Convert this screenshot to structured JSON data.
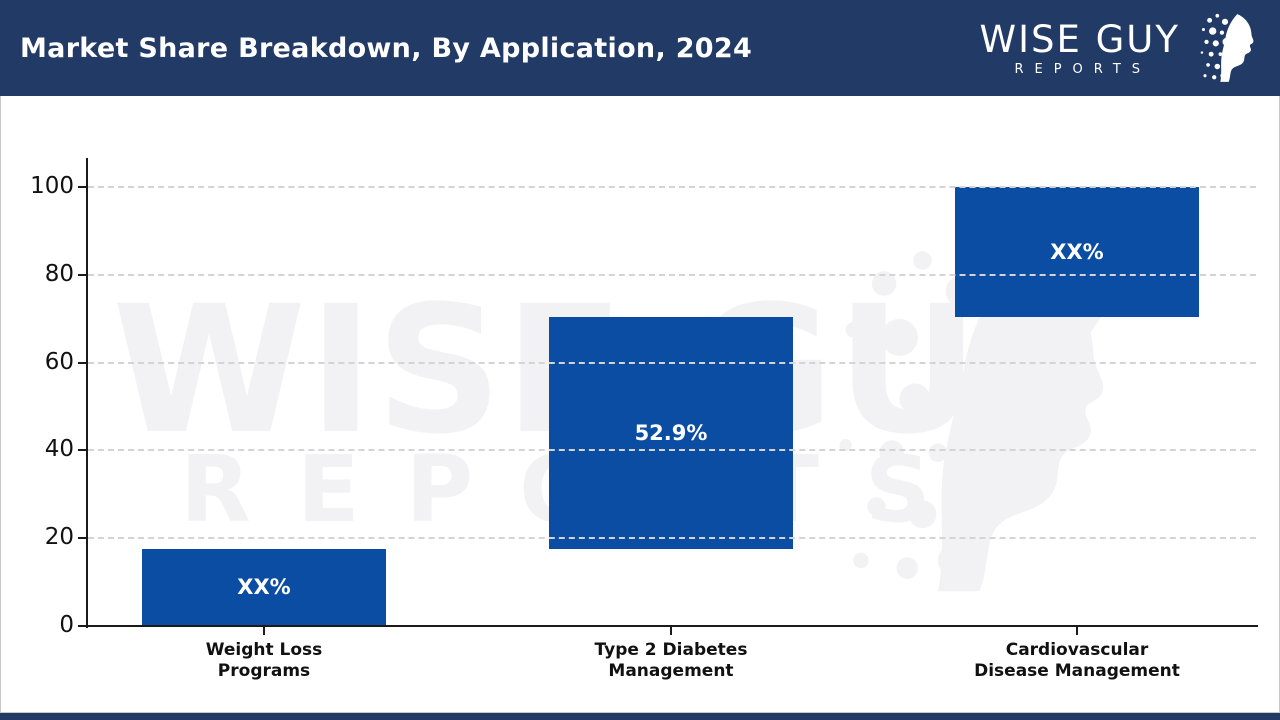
{
  "header": {
    "title": "Market Share Breakdown, By Application, 2024",
    "logo": {
      "line1": "WISE GUY",
      "line2": "REPORTS"
    }
  },
  "watermark": {
    "line1": "WISE GUY",
    "line2": "REPORTS"
  },
  "colors": {
    "header_bg": "#213a66",
    "bar": "#0b4da2",
    "bar_label": "#ffffff",
    "gridline": "#d4d4d4",
    "axis": "#1a1a1a",
    "watermark": "#f2f2f4"
  },
  "chart_data": {
    "type": "bar",
    "subtype": "floating-waterfall",
    "title": "Market Share Breakdown, By Application, 2024",
    "categories": [
      [
        "Weight Loss",
        "Programs"
      ],
      [
        "Type 2 Diabetes",
        "Management"
      ],
      [
        "Cardiovascular",
        "Disease Management"
      ]
    ],
    "bars": [
      {
        "category": "Weight Loss Programs",
        "label": "XX%",
        "start": 0,
        "end": 17.6
      },
      {
        "category": "Type 2 Diabetes Management",
        "label": "52.9%",
        "start": 17.6,
        "end": 70.5
      },
      {
        "category": "Cardiovascular Disease Management",
        "label": "XX%",
        "start": 70.5,
        "end": 100
      }
    ],
    "ylim": [
      0,
      100
    ],
    "yticks": [
      0,
      20,
      40,
      60,
      80,
      100
    ],
    "xlabel": "",
    "ylabel": "",
    "grid": "horizontal-dashed",
    "legend": "none"
  }
}
